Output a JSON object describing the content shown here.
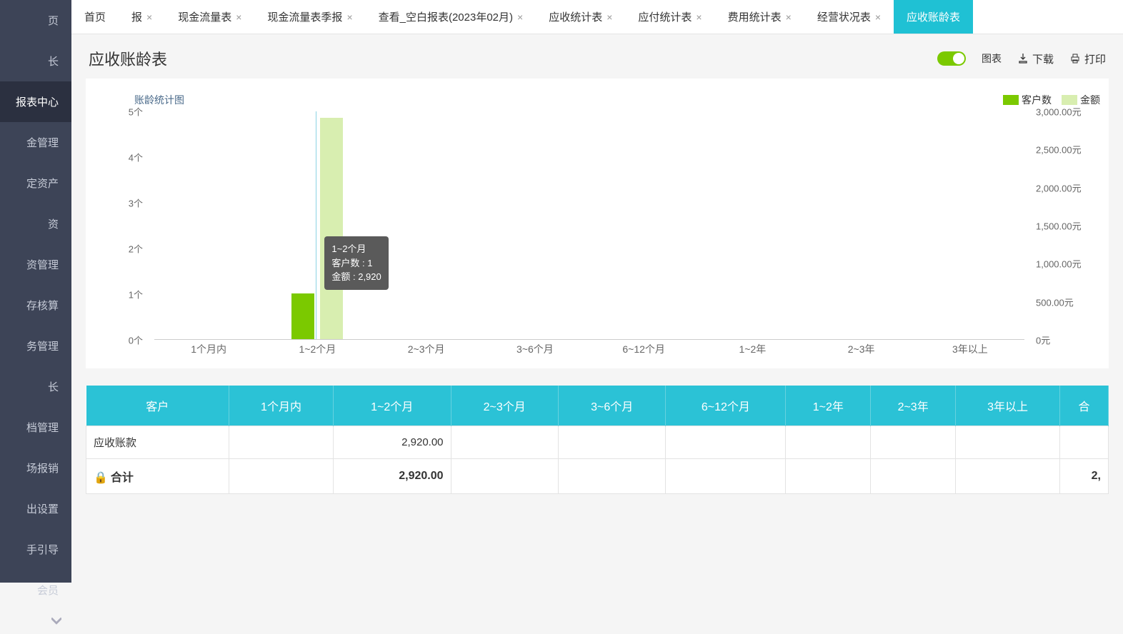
{
  "sidebar": {
    "items": [
      {
        "label": "页"
      },
      {
        "label": "长"
      },
      {
        "label": "报表中心",
        "active": true
      },
      {
        "label": "金管理"
      },
      {
        "label": "定资产"
      },
      {
        "label": "资"
      },
      {
        "label": "资管理"
      },
      {
        "label": "存核算"
      },
      {
        "label": "务管理"
      },
      {
        "label": "长"
      },
      {
        "label": "档管理"
      },
      {
        "label": "场报销"
      },
      {
        "label": "出设置"
      },
      {
        "label": "手引导"
      },
      {
        "label": "会员"
      }
    ]
  },
  "tabs": [
    {
      "label": "首页",
      "closeable": false,
      "active": false
    },
    {
      "label": "报",
      "closeable": true,
      "active": false
    },
    {
      "label": "现金流量表",
      "closeable": true,
      "active": false
    },
    {
      "label": "现金流量表季报",
      "closeable": true,
      "active": false
    },
    {
      "label": "查看_空白报表(2023年02月)",
      "closeable": true,
      "active": false
    },
    {
      "label": "应收统计表",
      "closeable": true,
      "active": false
    },
    {
      "label": "应付统计表",
      "closeable": true,
      "active": false
    },
    {
      "label": "费用统计表",
      "closeable": true,
      "active": false
    },
    {
      "label": "经营状况表",
      "closeable": true,
      "active": false
    },
    {
      "label": "应收账龄表",
      "closeable": false,
      "active": true
    }
  ],
  "header": {
    "title": "应收账龄表",
    "toggle_label": "图表",
    "download": "下载",
    "print": "打印"
  },
  "chart": {
    "title": "账龄统计图",
    "legend": [
      {
        "name": "客户数",
        "color": "#7bc900"
      },
      {
        "name": "金额",
        "color": "#d8eeb0"
      }
    ],
    "categories": [
      "1个月内",
      "1~2个月",
      "2~3个月",
      "3~6个月",
      "6~12个月",
      "1~2年",
      "2~3年",
      "3年以上"
    ],
    "series_customers": {
      "values": [
        0,
        1,
        0,
        0,
        0,
        0,
        0,
        0
      ],
      "color": "#7bc900",
      "ymax": 5,
      "unit": "个"
    },
    "series_amount": {
      "values": [
        0,
        2920,
        0,
        0,
        0,
        0,
        0,
        0
      ],
      "color": "#d8eeb0",
      "ymax": 3000,
      "unit": "元"
    },
    "ytick_left": [
      "0个",
      "1个",
      "2个",
      "3个",
      "4个",
      "5个"
    ],
    "ytick_right": [
      "0元",
      "500.00元",
      "1,000.00元",
      "1,500.00元",
      "2,000.00元",
      "2,500.00元",
      "3,000.00元"
    ],
    "tooltip": {
      "category": "1~2个月",
      "line1": "客户数 : 1",
      "line2": "金额 : 2,920"
    }
  },
  "table": {
    "columns": [
      "客户",
      "1个月内",
      "1~2个月",
      "2~3个月",
      "3~6个月",
      "6~12个月",
      "1~2年",
      "2~3年",
      "3年以上",
      "合"
    ],
    "rows": [
      {
        "label": "应收账款",
        "cells": [
          "",
          "2,920.00",
          "",
          "",
          "",
          "",
          "",
          "",
          ""
        ]
      }
    ],
    "total": {
      "label": "合计",
      "cells": [
        "",
        "2,920.00",
        "",
        "",
        "",
        "",
        "",
        "",
        "2,"
      ]
    }
  }
}
